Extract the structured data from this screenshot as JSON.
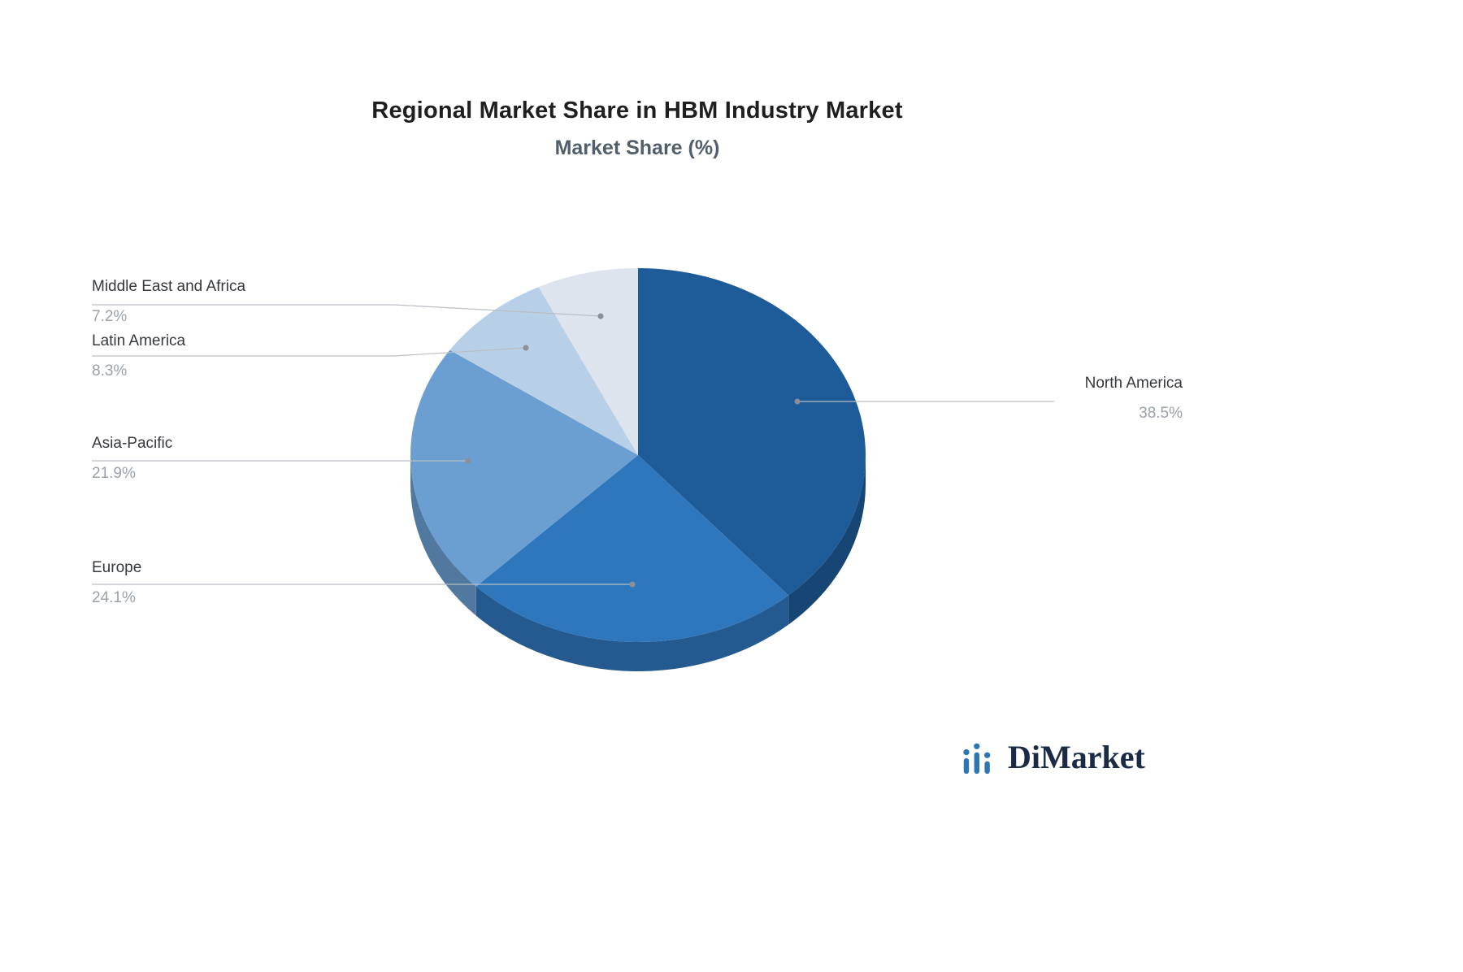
{
  "page": {
    "background": "#ffffff"
  },
  "chart_data": {
    "type": "pie",
    "title": "Regional Market Share in HBM Industry Market",
    "subtitle": "Market Share (%)",
    "unit": "%",
    "start_angle_deg": -90,
    "direction": "clockwise",
    "label_position": "outside",
    "legend": false,
    "style": "pie-3d",
    "slices": [
      {
        "label": "North America",
        "value": 38.5,
        "display": "38.5%",
        "color": "#1e5c99"
      },
      {
        "label": "Europe",
        "value": 24.1,
        "display": "24.1%",
        "color": "#2f77bd"
      },
      {
        "label": "Asia-Pacific",
        "value": 21.9,
        "display": "21.9%",
        "color": "#6b9fd1"
      },
      {
        "label": "Latin America",
        "value": 8.3,
        "display": "8.3%",
        "color": "#b7cfe7"
      },
      {
        "label": "Middle East and Africa",
        "value": 7.2,
        "display": "7.2%",
        "color": "#dde4ee"
      }
    ]
  },
  "branding": {
    "logo_text": "DiMarket",
    "logo_color": "#1c2b45",
    "icon_color": "#2e75b6"
  }
}
